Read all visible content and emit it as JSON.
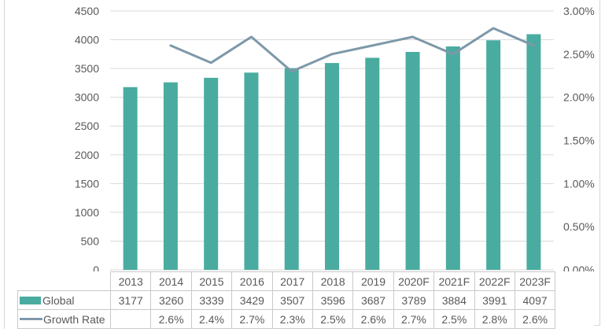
{
  "chart_data": {
    "type": "bar+line combo",
    "title": "",
    "categories": [
      "2013",
      "2014",
      "2015",
      "2016",
      "2017",
      "2018",
      "2019",
      "2020F",
      "2021F",
      "2022F",
      "2023F"
    ],
    "series": [
      {
        "name": "Global",
        "type": "bar",
        "axis": "left",
        "color": "#4AACA0",
        "values": [
          3177,
          3260,
          3339,
          3429,
          3507,
          3596,
          3687,
          3789,
          3884,
          3991,
          4097
        ],
        "display": [
          "3177",
          "3260",
          "3339",
          "3429",
          "3507",
          "3596",
          "3687",
          "3789",
          "3884",
          "3991",
          "4097"
        ]
      },
      {
        "name": "Growth Rate",
        "type": "line",
        "axis": "right",
        "color": "#7D98A9",
        "values": [
          null,
          2.6,
          2.4,
          2.7,
          2.3,
          2.5,
          2.6,
          2.7,
          2.5,
          2.8,
          2.6
        ],
        "display": [
          "",
          "2.6%",
          "2.4%",
          "2.7%",
          "2.3%",
          "2.5%",
          "2.6%",
          "2.7%",
          "2.5%",
          "2.8%",
          "2.6%"
        ]
      }
    ],
    "left_axis": {
      "min": 0,
      "max": 4500,
      "step": 500,
      "ticks": [
        "0",
        "500",
        "1000",
        "1500",
        "2000",
        "2500",
        "3000",
        "3500",
        "4000",
        "4500"
      ]
    },
    "right_axis": {
      "min": 0,
      "max": 3,
      "step": 0.5,
      "ticks": [
        "0.00%",
        "0.50%",
        "1.00%",
        "1.50%",
        "2.00%",
        "2.50%",
        "3.00%"
      ]
    },
    "grid": true,
    "legend_position": "data-table-left"
  },
  "styles": {
    "background": "#ffffff",
    "bar_color": "#4AACA0",
    "line_color": "#7D98A9",
    "grid_color": "#d9d9d9",
    "axis_text_color": "#595959",
    "table_text_color": "#595959",
    "table_border_color": "#c9c9c9",
    "frame_border_color": "#d7d7d7"
  }
}
